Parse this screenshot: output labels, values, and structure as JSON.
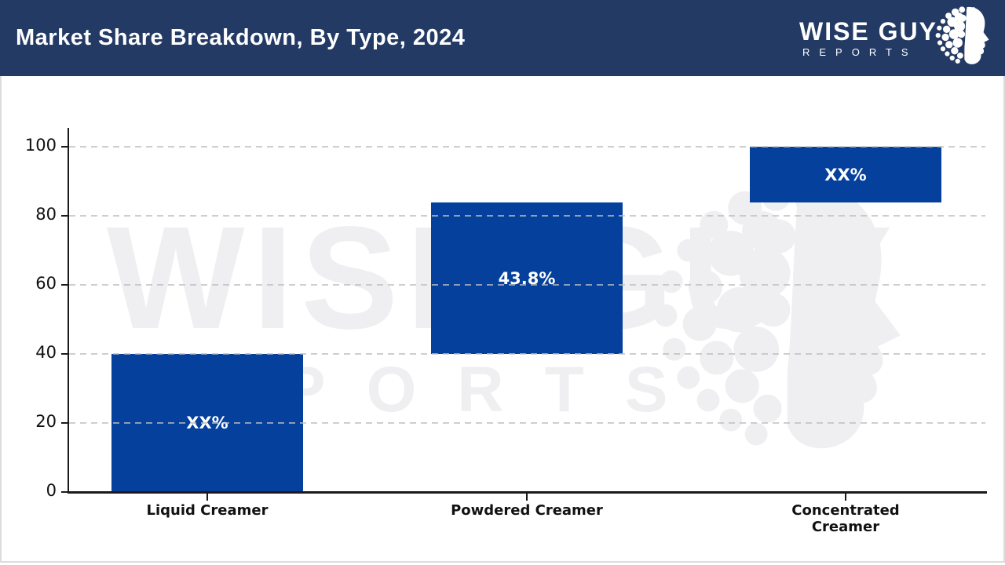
{
  "header": {
    "title": "Market Share Breakdown, By Type, 2024",
    "logo": {
      "line1": "WISE GUY",
      "line2": "REPORTS"
    }
  },
  "watermark": {
    "line1": "WISE GUY",
    "line2": "REPORTS"
  },
  "chart_data": {
    "type": "bar",
    "variant": "waterfall-floating-bars",
    "title": "Market Share Breakdown, By Type, 2024",
    "categories": [
      "Liquid Creamer",
      "Powdered Creamer",
      "Concentrated Creamer"
    ],
    "bars": [
      {
        "category": "Liquid Creamer",
        "start": 0,
        "end": 40,
        "label": "XX%"
      },
      {
        "category": "Powdered Creamer",
        "start": 40,
        "end": 83.8,
        "label": "43.8%"
      },
      {
        "category": "Concentrated Creamer",
        "start": 83.8,
        "end": 100,
        "label": "XX%"
      }
    ],
    "yticks": [
      0,
      20,
      40,
      60,
      80,
      100
    ],
    "ylim": [
      0,
      105.5
    ],
    "xlabel": "",
    "ylabel": "",
    "grid": "horizontal-dashed",
    "legend": false,
    "colors": {
      "bar": "#04409c",
      "header_bg": "#233a65",
      "grid": "#d9d9d9",
      "axis": "#1a1a1a",
      "bar_label": "#ffffff",
      "watermark": "#efeff1"
    }
  }
}
